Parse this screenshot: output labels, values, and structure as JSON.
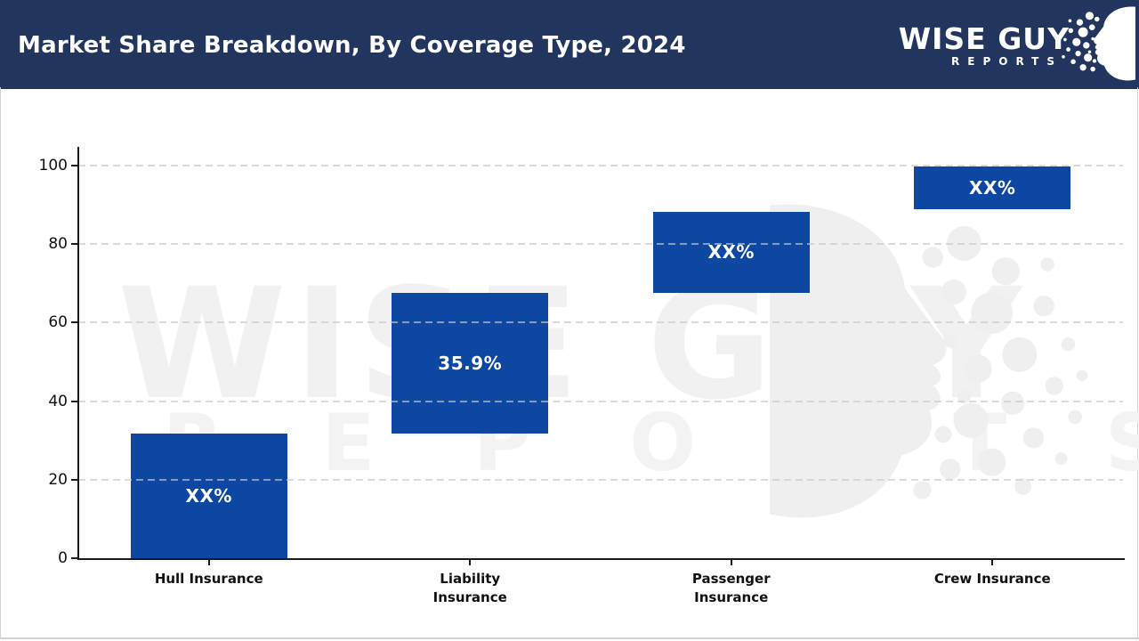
{
  "header": {
    "title": "Market Share Breakdown, By Coverage Type, 2024",
    "bg_color": "#21355e",
    "logo": {
      "name": "WISE GUY",
      "sub": "REPORTS",
      "icon": "face-profile-dots"
    }
  },
  "watermark": {
    "name": "WISE GUY",
    "sub": "R E P O R T S",
    "icon": "face-profile-dots"
  },
  "chart_data": {
    "type": "bar",
    "subtype": "floating-stacked-percentage",
    "title": "Market Share Breakdown, By Coverage Type, 2024",
    "categories": [
      "Hull Insurance",
      "Liability Insurance",
      "Passenger Insurance",
      "Crew Insurance"
    ],
    "category_label_lines": [
      [
        "Hull Insurance"
      ],
      [
        "Liability",
        "Insurance"
      ],
      [
        "Passenger",
        "Insurance"
      ],
      [
        "Crew Insurance"
      ]
    ],
    "segments": [
      {
        "category": "Hull Insurance",
        "start": 0,
        "end": 31.7,
        "label": "XX%"
      },
      {
        "category": "Liability Insurance",
        "start": 31.7,
        "end": 67.6,
        "label": "35.9%"
      },
      {
        "category": "Passenger Insurance",
        "start": 67.6,
        "end": 88.3,
        "label": "XX%"
      },
      {
        "category": "Crew Insurance",
        "start": 88.9,
        "end": 99.8,
        "label": "XX%"
      }
    ],
    "xlabel": "",
    "ylabel": "",
    "ylim": [
      0,
      100
    ],
    "yticks": [
      0,
      20,
      40,
      60,
      80,
      100
    ],
    "grid": "horizontal-dashed",
    "legend": "none",
    "colors": {
      "bar": "#0d47a1",
      "bar_label": "#ffffff",
      "axis": "#1a1a1a",
      "tick_label": "#111111",
      "grid": "#c8c8c8",
      "header_bg": "#21355e",
      "header_text": "#ffffff",
      "watermark": "#f0f0f0"
    }
  }
}
